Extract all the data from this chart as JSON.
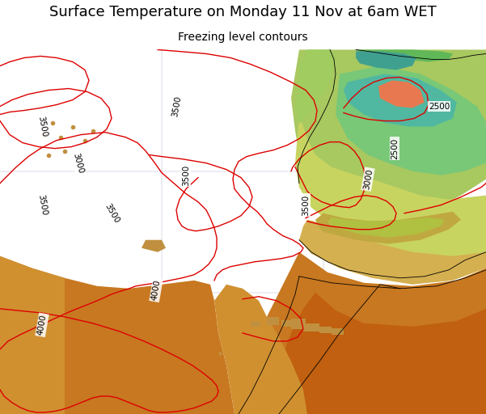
{
  "title": "Surface Temperature on Monday 11 Nov at 6am WET",
  "subtitle": "Freezing level contours",
  "title_fontsize": 13,
  "subtitle_fontsize": 10,
  "bg_color": "#ffffff",
  "map_ocean_color": "#c8d4e8",
  "map_land_spain_color_cool": "#90c060",
  "map_land_spain_color_green": "#60b040",
  "map_land_morocco_color": "#d4a040",
  "map_land_sahara_color": "#c87820",
  "contour_color": "#dd0000",
  "contour_label_color": "#000000",
  "contour_bg_color": "#ffffff",
  "fig_width": 6.01,
  "fig_height": 5.12,
  "dpi": 100
}
